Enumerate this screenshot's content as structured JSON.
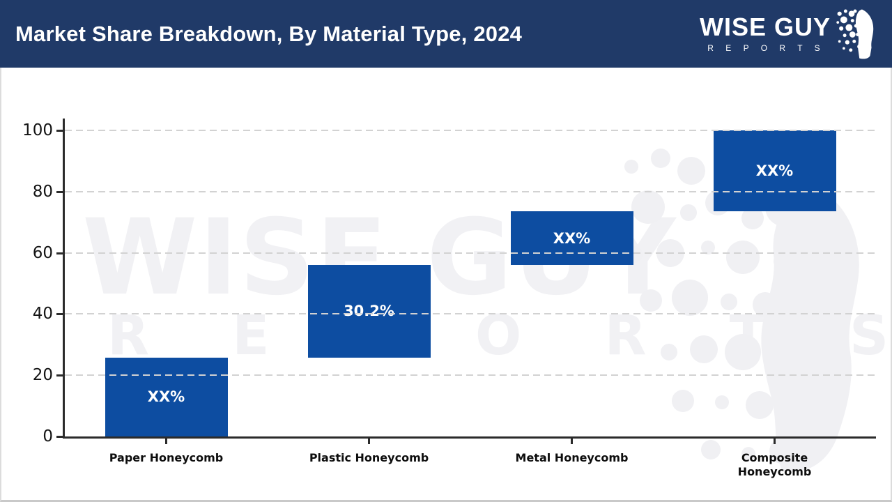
{
  "header": {
    "title": "Market Share Breakdown, By Material Type, 2024",
    "logo": {
      "line1": "WISE GUY",
      "line2": "R E P O R T S"
    }
  },
  "watermark": {
    "line1": "WISE GUY",
    "line2": "R E P O R T S"
  },
  "colors": {
    "header_bg": "#203a68",
    "bar": "#0d4da1",
    "grid": "#d2d2d2",
    "watermark": "#f1f1f4",
    "axis": "#2b2b2b",
    "bar_label": "#ffffff"
  },
  "chart_data": {
    "type": "bar",
    "variant": "floating-waterfall",
    "title": "Market Share Breakdown, By Material Type, 2024",
    "categories": [
      "Paper Honeycomb",
      "Plastic Honeycomb",
      "Metal Honeycomb",
      "Composite Honeycomb"
    ],
    "tick_labels": [
      "Paper Honeycomb",
      "Plastic Honeycomb",
      "Metal Honeycomb",
      "Composite\nHoneycomb"
    ],
    "bars": [
      {
        "category": "Paper Honeycomb",
        "start": 0,
        "end": 25.8,
        "value_label": "XX%"
      },
      {
        "category": "Plastic Honeycomb",
        "start": 25.8,
        "end": 56.0,
        "value_label": "30.2%"
      },
      {
        "category": "Metal Honeycomb",
        "start": 56.0,
        "end": 73.5,
        "value_label": "XX%"
      },
      {
        "category": "Composite Honeycomb",
        "start": 73.5,
        "end": 100,
        "value_label": "XX%"
      }
    ],
    "yticks": [
      0,
      20,
      40,
      60,
      80,
      100
    ],
    "ylim": [
      0,
      100
    ],
    "xlabel": "",
    "ylabel": "",
    "grid": "horizontal-dashed",
    "legend": "none"
  }
}
